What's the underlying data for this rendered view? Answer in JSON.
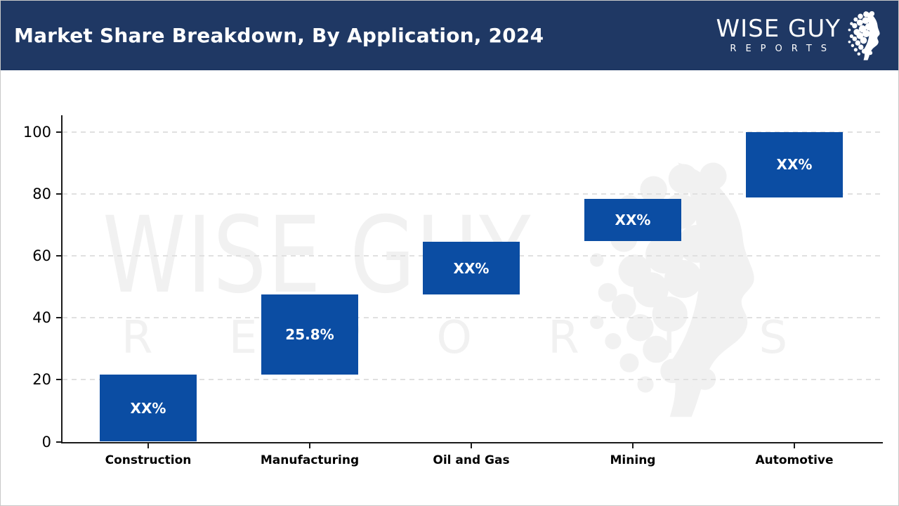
{
  "header": {
    "title": "Market Share Breakdown, By Application, 2024",
    "logo": {
      "brand": "WISE GUY",
      "sub": "REPORTS"
    }
  },
  "watermark": {
    "line1": "WISE GUY",
    "line2": "R E P O R T S"
  },
  "chart_data": {
    "type": "bar",
    "subtype": "waterfall-stacked-segments",
    "title": "Market Share Breakdown, By Application, 2024",
    "categories": [
      "Construction",
      "Manufacturing",
      "Oil and Gas",
      "Mining",
      "Automotive"
    ],
    "series": [
      {
        "name": "Market Share",
        "segments": [
          {
            "category": "Construction",
            "start": 0,
            "end": 21.6,
            "label": "XX%"
          },
          {
            "category": "Manufacturing",
            "start": 21.7,
            "end": 47.5,
            "label": "25.8%"
          },
          {
            "category": "Oil and Gas",
            "start": 47.4,
            "end": 64.6,
            "label": "XX%"
          },
          {
            "category": "Mining",
            "start": 64.7,
            "end": 78.4,
            "label": "XX%"
          },
          {
            "category": "Automotive",
            "start": 78.7,
            "end": 100,
            "label": "XX%"
          }
        ]
      }
    ],
    "values": [
      21.6,
      25.8,
      17.2,
      13.7,
      21.3
    ],
    "bar_labels": [
      "XX%",
      "25.8%",
      "XX%",
      "XX%",
      "XX%"
    ],
    "xlabel": "",
    "ylabel": "",
    "ylim": [
      0,
      105
    ],
    "y_ticks": [
      0,
      20,
      40,
      60,
      80,
      100
    ],
    "grid": "dashed-horizontal",
    "legend": "none",
    "label_color": "#ffffff"
  },
  "colors": {
    "header_bg": "#1f3864",
    "bar": "#0b4da3",
    "grid": "#e0e0e0",
    "axis": "#1a1a1a",
    "tick_label": "#000000",
    "watermark": "#f1f1f1",
    "page_border": "#c9c9c9"
  }
}
